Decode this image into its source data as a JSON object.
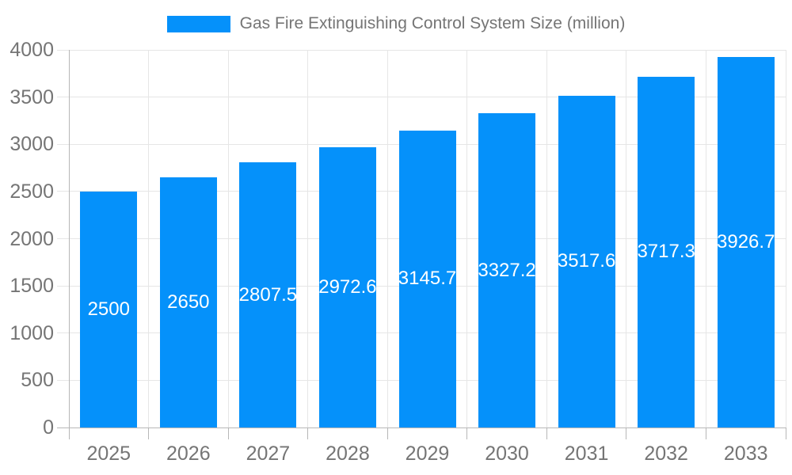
{
  "legend": {
    "label": "Gas Fire Extinguishing Control System Size (million)"
  },
  "chart_data": {
    "type": "bar",
    "title": "Gas Fire Extinguishing Control System Size (million)",
    "categories": [
      "2025",
      "2026",
      "2027",
      "2028",
      "2029",
      "2030",
      "2031",
      "2032",
      "2033"
    ],
    "values": [
      2500,
      2650,
      2807.5,
      2972.6,
      3145.7,
      3327.2,
      3517.6,
      3717.3,
      3926.7
    ],
    "value_labels": [
      "2500",
      "2650",
      "2807.5",
      "2972.6",
      "3145.7",
      "3327.2",
      "3517.6",
      "3717.3",
      "3926.7"
    ],
    "xlabel": "",
    "ylabel": "",
    "ylim": [
      0,
      4000
    ],
    "yticks": [
      0,
      500,
      1000,
      1500,
      2000,
      2500,
      3000,
      3500,
      4000
    ],
    "grid": true,
    "legend_position": "top",
    "colors": {
      "bar": "#0591FA",
      "grid": "#E6E6E6",
      "axis": "#B7B7B7",
      "text": "#757575",
      "value_label": "#FFFFFF",
      "background": "#FFFFFF"
    }
  }
}
